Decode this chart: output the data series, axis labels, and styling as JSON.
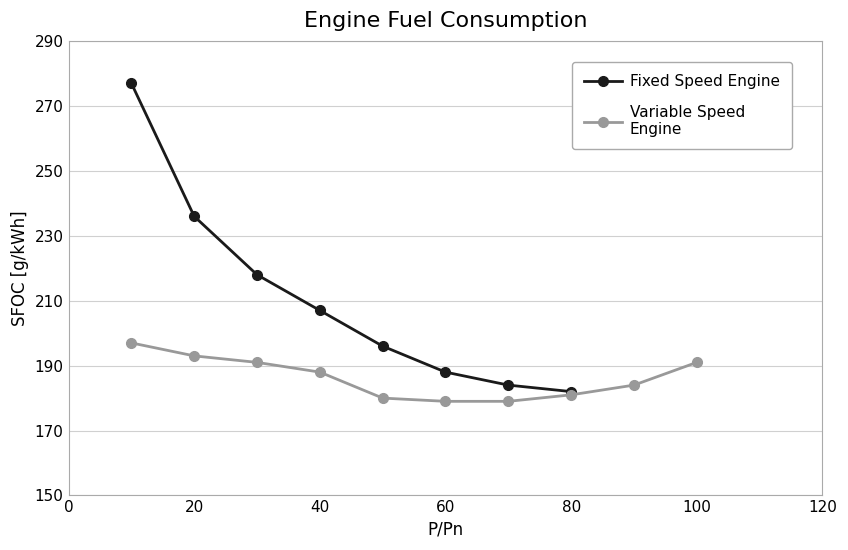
{
  "title": "Engine Fuel Consumption",
  "xlabel": "P/Pn",
  "ylabel": "SFOC [g/kWh]",
  "xlim": [
    0,
    120
  ],
  "ylim": [
    150,
    290
  ],
  "xticks": [
    0,
    20,
    40,
    60,
    80,
    100,
    120
  ],
  "yticks": [
    150,
    170,
    190,
    210,
    230,
    250,
    270,
    290
  ],
  "fixed_speed": {
    "x": [
      10,
      20,
      30,
      40,
      50,
      60,
      70,
      80
    ],
    "y": [
      277,
      236,
      218,
      207,
      196,
      188,
      184,
      182
    ],
    "color": "#1a1a1a",
    "label": "Fixed Speed Engine",
    "linewidth": 2.0,
    "markersize": 7
  },
  "variable_speed": {
    "x": [
      10,
      20,
      30,
      40,
      50,
      60,
      70,
      80,
      90,
      100
    ],
    "y": [
      197,
      193,
      191,
      188,
      180,
      179,
      179,
      181,
      184,
      191
    ],
    "color": "#999999",
    "label": "Variable Speed\nEngine",
    "linewidth": 2.0,
    "markersize": 7
  },
  "background_color": "#ffffff",
  "grid_color": "#d0d0d0",
  "title_fontsize": 16,
  "label_fontsize": 12,
  "tick_fontsize": 11,
  "spine_color": "#aaaaaa"
}
